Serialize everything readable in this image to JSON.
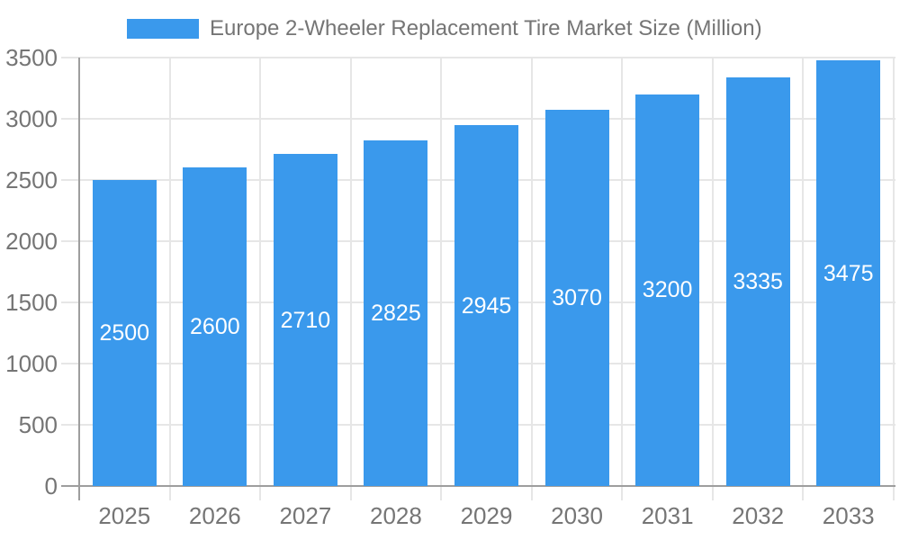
{
  "chart_data": {
    "type": "bar",
    "title": "Europe 2-Wheeler Replacement Tire Market Size (Million)",
    "series": [
      {
        "name": "Europe 2-Wheeler Replacement Tire Market Size (Million)",
        "values": [
          2500,
          2600,
          2710,
          2825,
          2945,
          3070,
          3200,
          3335,
          3475
        ]
      }
    ],
    "categories": [
      "2025",
      "2026",
      "2027",
      "2028",
      "2029",
      "2030",
      "2031",
      "2032",
      "2033"
    ],
    "value_labels": [
      "2500",
      "2600",
      "2710",
      "2825",
      "2945",
      "3070",
      "3200",
      "3335",
      "3475"
    ],
    "xlabel": "",
    "ylabel": "",
    "ylim": [
      0,
      3500
    ],
    "yticks": [
      0,
      500,
      1000,
      1500,
      2000,
      2500,
      3000,
      3500
    ],
    "grid": true,
    "legend_position": "top",
    "colors": {
      "bar_fill": "#3A99EC",
      "value_label_text": "#FFFFFF",
      "axis_text": "#757575",
      "grid_line": "#E6E6E6",
      "axis_line": "#9E9E9E",
      "background": "#FFFFFF"
    }
  }
}
